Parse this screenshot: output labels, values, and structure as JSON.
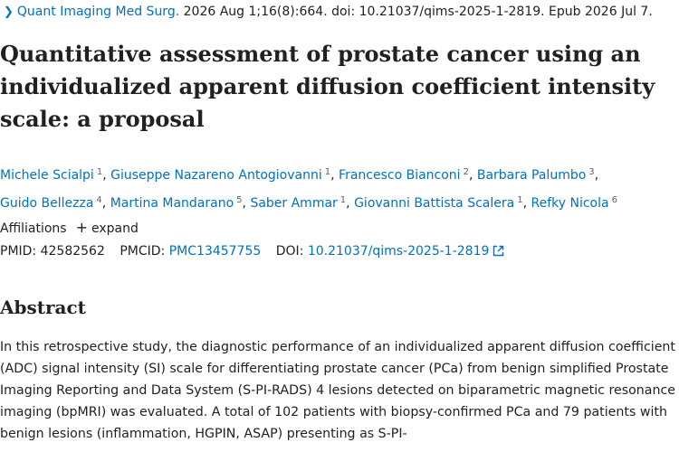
{
  "citation": {
    "journal": "Quant Imaging Med Surg.",
    "details": "2026 Aug 1;16(8):664. doi: 10.21037/qims-2025-1-2819. Epub 2026 Jul 7."
  },
  "title": "Quantitative assessment of prostate cancer using an individualized apparent diffusion coefficient intensity scale: a proposal",
  "authors": [
    {
      "name": "Michele Scialpi",
      "aff": "1"
    },
    {
      "name": "Giuseppe Nazareno Antogiovanni",
      "aff": "1"
    },
    {
      "name": "Francesco Bianconi",
      "aff": "2"
    },
    {
      "name": "Barbara Palumbo",
      "aff": "3"
    },
    {
      "name": "Guido Bellezza",
      "aff": "4"
    },
    {
      "name": "Martina Mandarano",
      "aff": "5"
    },
    {
      "name": "Saber Ammar",
      "aff": "1"
    },
    {
      "name": "Giovanni Battista Scalera",
      "aff": "1"
    },
    {
      "name": "Refky Nicola",
      "aff": "6"
    }
  ],
  "affiliations": {
    "label": "Affiliations",
    "plus_icon": "+",
    "expand_label": "expand"
  },
  "ids": {
    "pmid_label": "PMID:",
    "pmid": "42582562",
    "pmcid_label": "PMCID:",
    "pmcid": "PMC13457755",
    "doi_label": "DOI:",
    "doi": "10.21037/qims-2025-1-2819"
  },
  "abstract": {
    "heading": "Abstract",
    "text": "In this retrospective study, the diagnostic performance of an individualized apparent diffusion coefficient (ADC) signal intensity (SI) scale for differentiating prostate cancer (PCa) from benign simplified Prostate Imaging Reporting and Data System (S-PI-RADS) 4 lesions detected on biparametric magnetic resonance imaging (bpMRI) was evaluated. A total of 102 patients with biopsy-confirmed PCa and 79 patients with benign lesions (inflammation, HGPIN, ASAP) presenting as S-PI-"
  },
  "colors": {
    "link": "#0071bc",
    "text": "#212121",
    "muted": "#5b616b"
  }
}
